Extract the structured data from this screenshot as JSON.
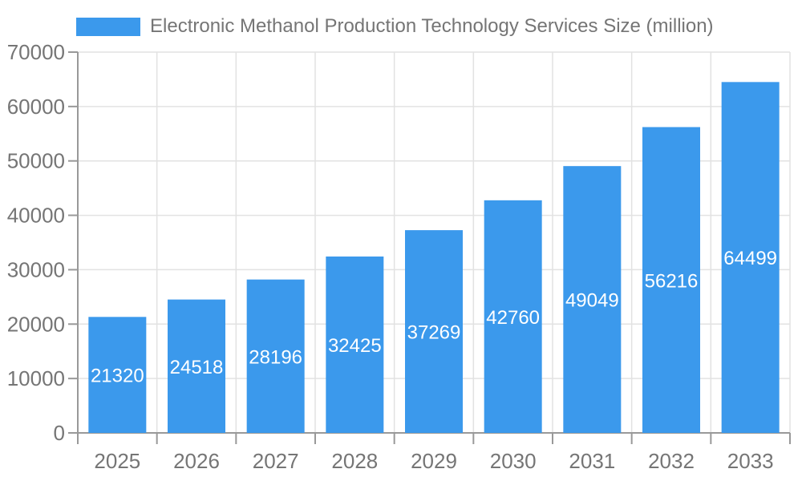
{
  "legend": {
    "series_label": "Electronic Methanol Production Technology Services Size (million)"
  },
  "chart_data": {
    "type": "bar",
    "title": "",
    "categories": [
      "2025",
      "2026",
      "2027",
      "2028",
      "2029",
      "2030",
      "2031",
      "2032",
      "2033"
    ],
    "series": [
      {
        "name": "Electronic Methanol Production Technology Services Size (million)",
        "values": [
          21320,
          24518,
          28196,
          32425,
          37269,
          42760,
          49049,
          56216,
          64499
        ]
      }
    ],
    "bar_value_labels": [
      "21320",
      "24518",
      "28196",
      "32425",
      "37269",
      "42760",
      "49049",
      "56216",
      "64499"
    ],
    "xlabel": "",
    "ylabel": "",
    "ylim": [
      0,
      70000
    ],
    "yticks": [
      0,
      10000,
      20000,
      30000,
      40000,
      50000,
      60000,
      70000
    ],
    "grid": "on",
    "legend_position": "top-left"
  },
  "colors": {
    "bar": "#3B99EC",
    "bar_label_text": "#FFFFFF",
    "axis_text": "#757575",
    "axis_line": "#999999",
    "grid_line": "#E2E2E2",
    "legend_text": "#757575",
    "background": "#FFFFFF"
  }
}
